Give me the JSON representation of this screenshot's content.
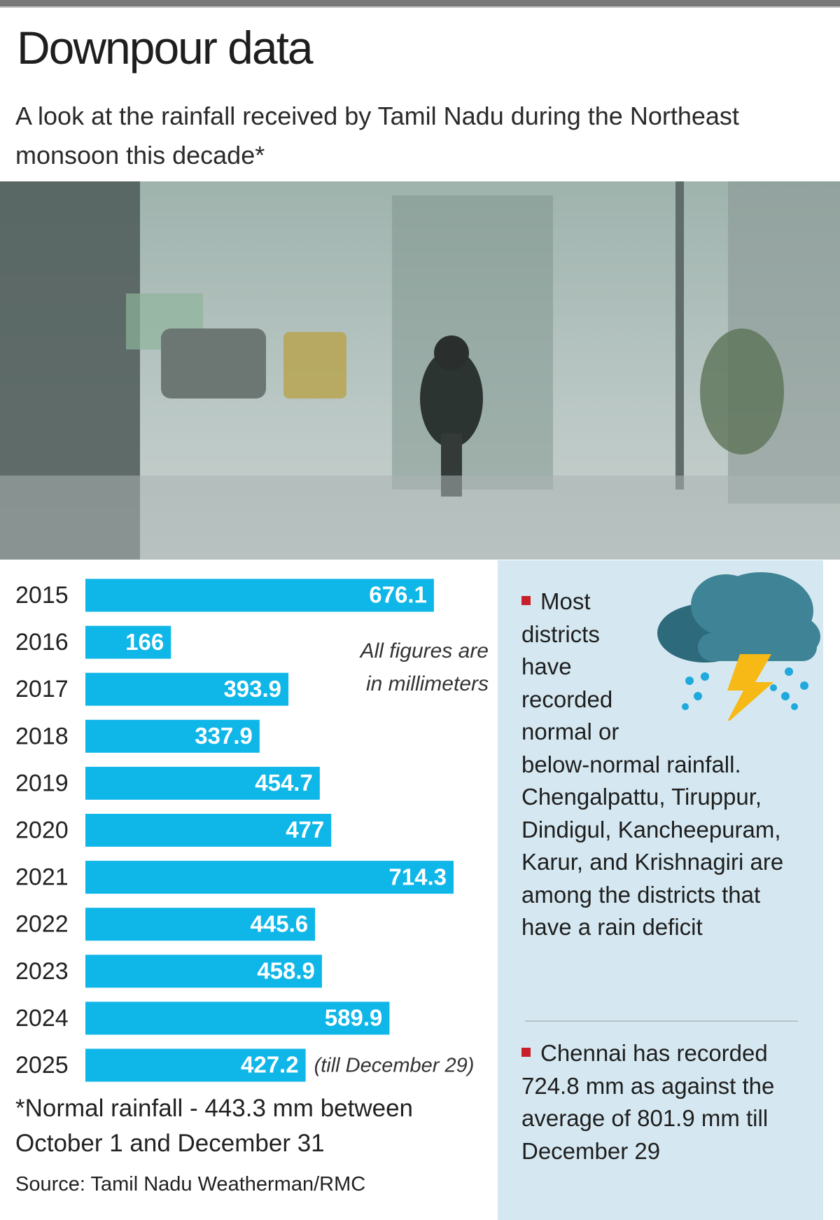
{
  "header": {
    "title": "Downpour data",
    "subtitle": "A look at the rainfall received by Tamil Nadu during the Northeast monsoon this decade*"
  },
  "chart_data": {
    "type": "bar",
    "orientation": "horizontal",
    "color": "#0fb6e8",
    "categories": [
      "2015",
      "2016",
      "2017",
      "2018",
      "2019",
      "2020",
      "2021",
      "2022",
      "2023",
      "2024",
      "2025"
    ],
    "values": [
      676.1,
      166,
      393.9,
      337.9,
      454.7,
      477,
      714.3,
      445.6,
      458.9,
      589.9,
      427.2
    ],
    "annotations": [
      "All figures are in millimeters",
      "(till December 29)"
    ]
  },
  "footnote": "*Normal rainfall - 443.3 mm between October 1 and December 31",
  "source": "Source: Tamil Nadu Weatherman/RMC",
  "sidebar": {
    "items": [
      "Most districts have recorded normal or below-normal rainfall. Chengalpattu, Tiruppur, Dindigul, Kancheepuram, Karur, and Krishnagiri are among the districts that have a rain deficit",
      "Chennai has recorded 724.8 mm as against the average of 801.9 mm till December 29"
    ]
  }
}
